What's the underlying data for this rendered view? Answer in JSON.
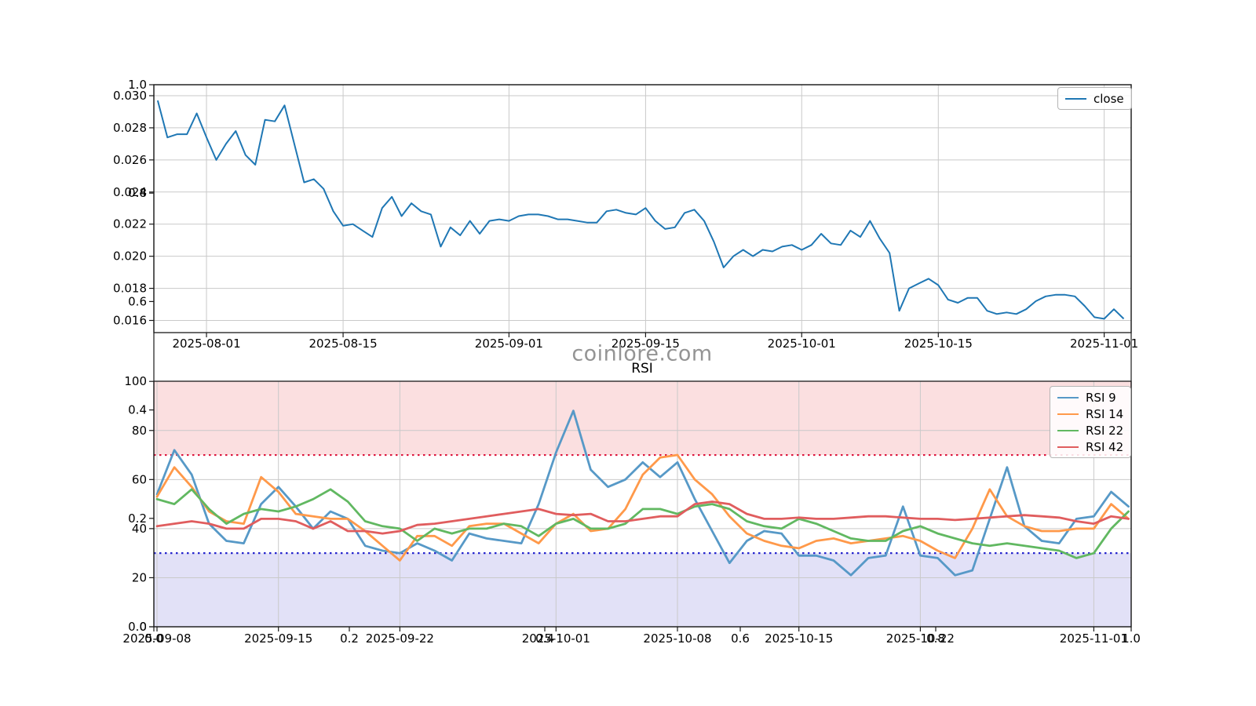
{
  "watermark": "coinlore.com",
  "figure_axes_ticks": {
    "x": [
      "0.0",
      "0.2",
      "0.4",
      "0.6",
      "0.8",
      "1.0"
    ],
    "y": [
      "0.0",
      "0.2",
      "0.4",
      "0.6",
      "0.8",
      "1.0"
    ]
  },
  "chart_data": [
    {
      "type": "line",
      "title": "",
      "legend_position": "upper right",
      "grid": true,
      "x_start_date": "2025-07-27",
      "x_tick_labels": [
        "2025-08-01",
        "2025-08-15",
        "2025-09-01",
        "2025-09-15",
        "2025-10-01",
        "2025-10-15",
        "2025-11-01"
      ],
      "y_tick_labels": [
        "0.016",
        "0.018",
        "0.020",
        "0.022",
        "0.024",
        "0.026",
        "0.028",
        "0.030"
      ],
      "ylim": [
        0.01525,
        0.03068
      ],
      "series": [
        {
          "name": "close",
          "color": "#1f77b4",
          "values": [
            0.0297,
            0.0274,
            0.0276,
            0.0276,
            0.0289,
            0.0274,
            0.026,
            0.027,
            0.0278,
            0.0263,
            0.0257,
            0.0285,
            0.0284,
            0.0294,
            0.027,
            0.0246,
            0.0248,
            0.0242,
            0.0228,
            0.0219,
            0.022,
            0.0216,
            0.0212,
            0.023,
            0.0237,
            0.0225,
            0.0233,
            0.0228,
            0.0226,
            0.0206,
            0.0218,
            0.0213,
            0.0222,
            0.0214,
            0.0222,
            0.0223,
            0.0222,
            0.0225,
            0.0226,
            0.0226,
            0.0225,
            0.0223,
            0.0223,
            0.0222,
            0.0221,
            0.0221,
            0.0228,
            0.0229,
            0.0227,
            0.0226,
            0.023,
            0.0222,
            0.0217,
            0.0218,
            0.0227,
            0.0229,
            0.0222,
            0.0209,
            0.0193,
            0.02,
            0.0204,
            0.02,
            0.0204,
            0.0203,
            0.0206,
            0.0207,
            0.0204,
            0.0207,
            0.0214,
            0.0208,
            0.0207,
            0.0216,
            0.0212,
            0.0222,
            0.0211,
            0.0202,
            0.0166,
            0.018,
            0.0183,
            0.0186,
            0.0182,
            0.0173,
            0.0171,
            0.0174,
            0.0174,
            0.0166,
            0.0164,
            0.0165,
            0.0164,
            0.0167,
            0.0172,
            0.0175,
            0.0176,
            0.0176,
            0.0175,
            0.0169,
            0.0162,
            0.0161,
            0.0167,
            0.0161
          ]
        }
      ]
    },
    {
      "type": "line",
      "title": "RSI",
      "legend_position": "upper right",
      "grid": true,
      "x_start_date": "2025-09-08",
      "x_tick_labels": [
        "2025-09-08",
        "2025-09-15",
        "2025-09-22",
        "2025-10-01",
        "2025-10-08",
        "2025-10-15",
        "2025-10-22",
        "2025-11-01"
      ],
      "y_tick_labels": [
        "0",
        "20",
        "40",
        "60",
        "80",
        "100"
      ],
      "ylim": [
        0,
        100
      ],
      "overbought_level": 70,
      "oversold_level": 30,
      "overbought_band_color": "#fbdfe0",
      "oversold_band_color": "#e2e1f7",
      "overbought_line_color": "#dc143c",
      "oversold_line_color": "#2525cd",
      "series": [
        {
          "name": "RSI 9",
          "color": "#5799c7",
          "values": [
            54,
            72,
            62,
            42,
            35,
            34,
            50,
            57,
            49,
            40,
            47,
            44,
            33,
            31,
            30,
            34,
            31,
            27,
            38,
            36,
            35,
            34,
            50,
            71,
            88,
            64,
            57,
            60,
            67,
            61,
            67,
            52,
            39,
            26,
            35,
            39,
            38,
            29,
            29,
            27,
            21,
            28,
            29,
            49,
            29,
            28,
            21,
            23,
            44,
            65,
            41,
            35,
            34,
            44,
            45,
            55,
            49
          ]
        },
        {
          "name": "RSI 14",
          "color": "#ff994a",
          "values": [
            53,
            65,
            57,
            47,
            43,
            42,
            61,
            55,
            46,
            45,
            44,
            44,
            39,
            33,
            27,
            37,
            37,
            33,
            41,
            42,
            42,
            38,
            34,
            42,
            46,
            39,
            40,
            48,
            62,
            69,
            70,
            60,
            54,
            45,
            38,
            35,
            33,
            32,
            35,
            36,
            34,
            35,
            36,
            37,
            35,
            31,
            28,
            40,
            56,
            45,
            41,
            39,
            39,
            40,
            40,
            50,
            44
          ]
        },
        {
          "name": "RSI 22",
          "color": "#61b861",
          "values": [
            52,
            50,
            56,
            48,
            42,
            46,
            48,
            47,
            49,
            52,
            56,
            51,
            43,
            41,
            40,
            35,
            40,
            38,
            40,
            40,
            42,
            41,
            37,
            42,
            44,
            40,
            40,
            42,
            48,
            48,
            46,
            49,
            50,
            48,
            43,
            41,
            40,
            44,
            42,
            39,
            36,
            35,
            35,
            39,
            41,
            38,
            36,
            34,
            33,
            34,
            33,
            32,
            31,
            28,
            30,
            40,
            47
          ]
        },
        {
          "name": "RSI 42",
          "color": "#e05d5e",
          "values": [
            41,
            42,
            43,
            42,
            40,
            40,
            44,
            44,
            43,
            40,
            43,
            39,
            39,
            38,
            39,
            41.5,
            42,
            43,
            44,
            45,
            46,
            47,
            48,
            46,
            45.5,
            46,
            43,
            43,
            44,
            45,
            45,
            50,
            51,
            50,
            46,
            44,
            44,
            44.5,
            44,
            44,
            44.5,
            45,
            45,
            44.5,
            44,
            44,
            43.5,
            44,
            44.5,
            45,
            45.5,
            45,
            44.5,
            43,
            42,
            45,
            44
          ]
        }
      ]
    }
  ]
}
